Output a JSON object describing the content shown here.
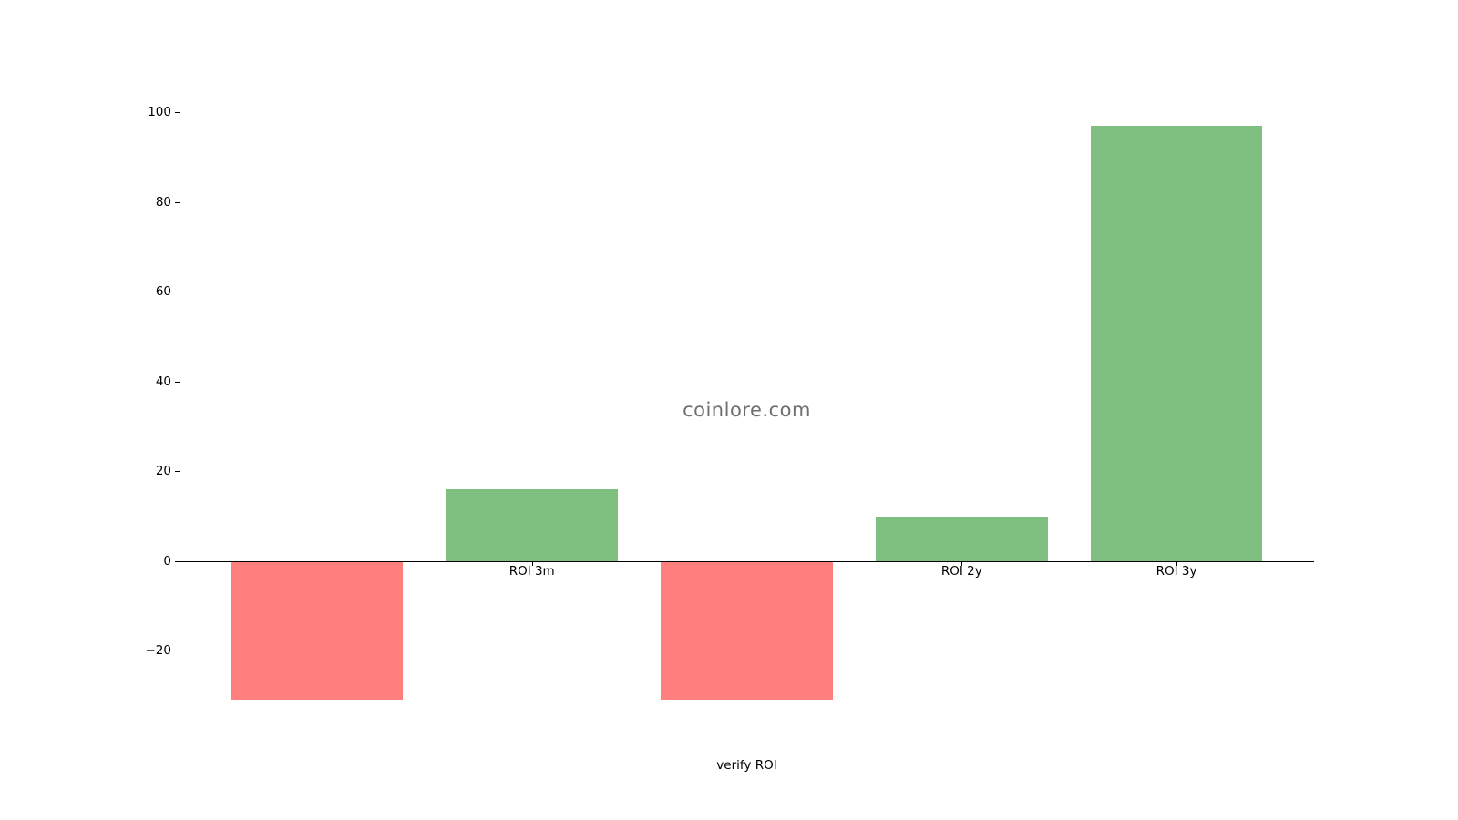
{
  "chart_data": {
    "type": "bar",
    "title": "",
    "xlabel": "verify ROI",
    "ylabel": "",
    "categories": [
      "",
      "ROI 3m",
      "",
      "ROI 2y",
      "ROI 3y"
    ],
    "values": [
      -31,
      16,
      -31,
      10,
      97
    ],
    "bar_colors": [
      "#ff7f7f",
      "#7fbf7f",
      "#ff7f7f",
      "#7fbf7f",
      "#7fbf7f"
    ],
    "positive_color": "#7fbf7f",
    "negative_color": "#ff7f7f",
    "ylim": [
      -37,
      103.5
    ],
    "yticks": [
      100,
      80,
      60,
      40,
      20,
      0,
      -20
    ],
    "ytick_labels": [
      "100",
      "80",
      "60",
      "40",
      "20",
      "0",
      "−20"
    ],
    "grid": false,
    "legend": "none",
    "axis_color": "#000000",
    "watermark": "coinlore.com",
    "watermark_color": "#6f6f6f"
  }
}
